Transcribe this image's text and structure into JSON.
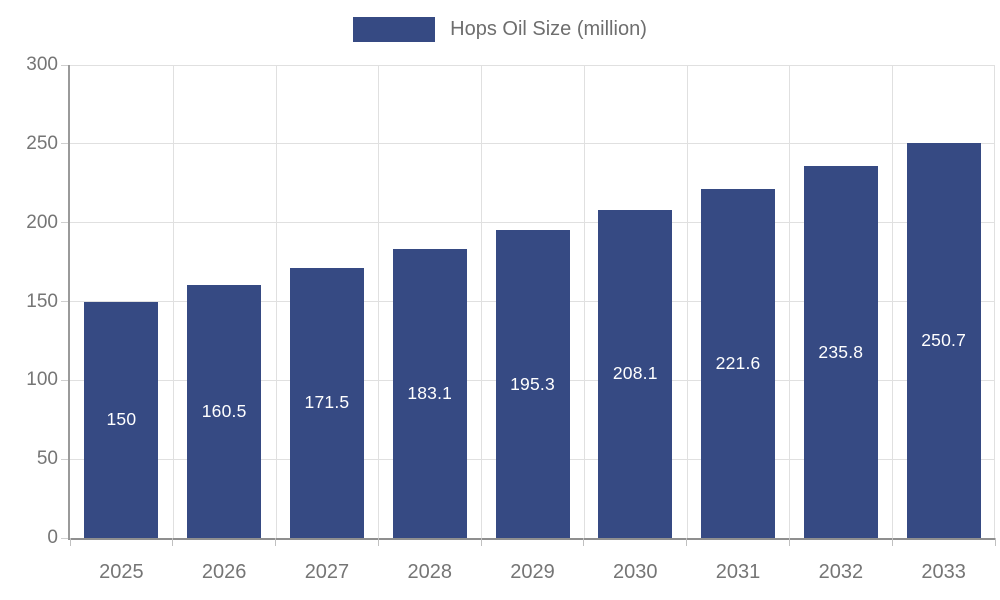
{
  "legend": {
    "label": "Hops Oil Size (million)",
    "swatch_color": "#364a83"
  },
  "chart_data": {
    "type": "bar",
    "title": "Hops Oil Size (million)",
    "series_name": "Hops Oil Size (million)",
    "categories": [
      "2025",
      "2026",
      "2027",
      "2028",
      "2029",
      "2030",
      "2031",
      "2032",
      "2033"
    ],
    "values": [
      150,
      160.5,
      171.5,
      183.1,
      195.3,
      208.1,
      221.6,
      235.8,
      250.7
    ],
    "value_labels": [
      "150",
      "160.5",
      "171.5",
      "183.1",
      "195.3",
      "208.1",
      "221.6",
      "235.8",
      "250.7"
    ],
    "xlabel": "",
    "ylabel": "",
    "ylim": [
      0,
      300
    ],
    "yticks": [
      0,
      50,
      100,
      150,
      200,
      250,
      300
    ],
    "grid": true,
    "legend_position": "top",
    "colors": {
      "bar": "#364a83",
      "value_label": "#ffffff",
      "axis_label": "#757575",
      "gridline": "#e0e0e0",
      "axis_line": "#9a9a9a"
    }
  }
}
